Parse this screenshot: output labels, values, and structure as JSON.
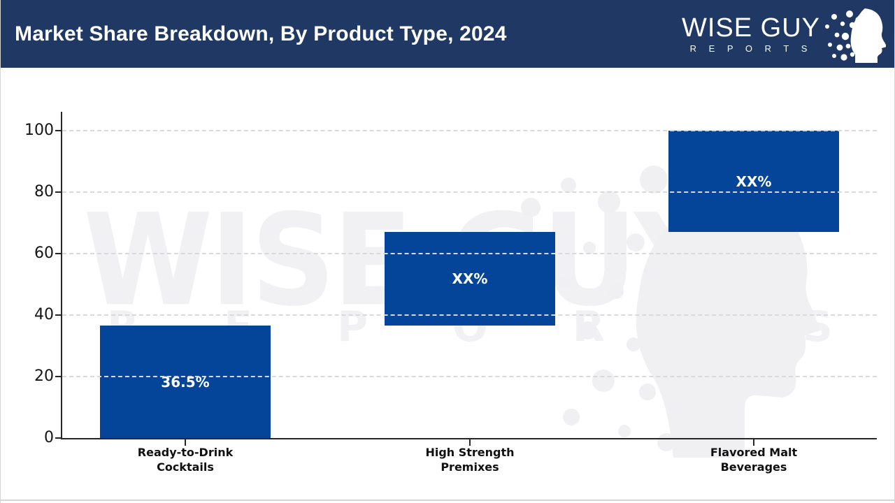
{
  "header": {
    "title": "Market Share Breakdown, By Product Type, 2024",
    "bg_color": "#1f3864",
    "logo": {
      "line1": "WISE GUY",
      "line2": "R E P O R T S"
    }
  },
  "watermark": {
    "line1": "WISE GUY",
    "line2": "R E P O R T S"
  },
  "chart_data": {
    "type": "bar",
    "subtype": "floating-waterfall",
    "title": "Market Share Breakdown, By Product Type, 2024",
    "categories": [
      [
        "Ready-to-Drink",
        "Cocktails"
      ],
      [
        "High Strength",
        "Premixes"
      ],
      [
        "Flavored Malt",
        "Beverages"
      ]
    ],
    "bars": [
      {
        "category": "Ready-to-Drink Cocktails",
        "start": 0,
        "end": 36.5,
        "label": "36.5%"
      },
      {
        "category": "High Strength Premixes",
        "start": 36.5,
        "end": 67,
        "label": "XX%"
      },
      {
        "category": "Flavored Malt Beverages",
        "start": 67,
        "end": 100,
        "label": "XX%"
      }
    ],
    "ylim": [
      0,
      106
    ],
    "yticks": [
      0,
      20,
      40,
      60,
      80,
      100
    ],
    "grid": "dashed horizontal, drawn above bars",
    "bar_color": "#04459a",
    "value_label_color": "#ffffff",
    "axis_color": "#262626",
    "grid_color": "#d9d9d9"
  }
}
